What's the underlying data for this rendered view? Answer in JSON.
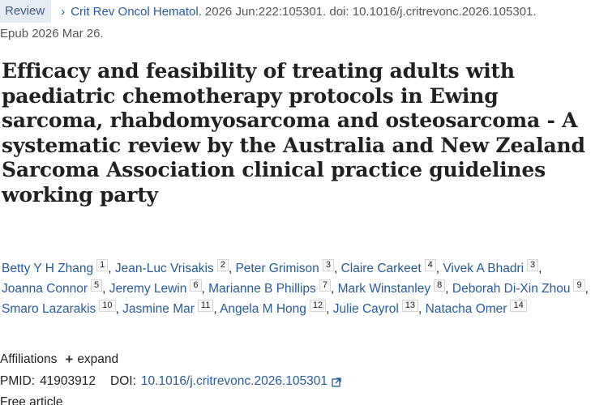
{
  "citation": {
    "badge": "Review",
    "journal": "Crit Rev Oncol Hematol.",
    "details": "2026 Jun:222:105301. doi: 10.1016/j.critrevonc.2026.105301.",
    "epub": "Epub 2026 Mar 26."
  },
  "article": {
    "title": "Efficacy and feasibility of treating adults with paediatric chemotherapy protocols in Ewing sarcoma, rhabdomyosarcoma and osteosarcoma - A systematic review by the Australia and New Zealand Sarcoma Association clinical practice guidelines working party"
  },
  "authors": [
    {
      "name": "Betty Y H Zhang",
      "aff": "1"
    },
    {
      "name": "Jean-Luc Vrisakis",
      "aff": "2"
    },
    {
      "name": "Peter Grimison",
      "aff": "3"
    },
    {
      "name": "Claire Carkeet",
      "aff": "4"
    },
    {
      "name": "Vivek A Bhadri",
      "aff": "3"
    },
    {
      "name": "Joanna Connor",
      "aff": "5"
    },
    {
      "name": "Jeremy Lewin",
      "aff": "6"
    },
    {
      "name": "Marianne B Phillips",
      "aff": "7"
    },
    {
      "name": "Mark Winstanley",
      "aff": "8"
    },
    {
      "name": "Deborah Di-Xin Zhou",
      "aff": "9"
    },
    {
      "name": "Smaro Lazarakis",
      "aff": "10"
    },
    {
      "name": "Jasmine Mar",
      "aff": "11"
    },
    {
      "name": "Angela M Hong",
      "aff": "12"
    },
    {
      "name": "Julie Cayrol",
      "aff": "13"
    },
    {
      "name": "Natacha Omer",
      "aff": "14"
    }
  ],
  "affiliations": {
    "label": "Affiliations",
    "expand_label": "expand",
    "icon": "plus-icon"
  },
  "identifiers": {
    "pmid_label": "PMID:",
    "pmid": "41903912",
    "doi_label": "DOI:",
    "doi": "10.1016/j.critrevonc.2026.105301",
    "doi_icon": "external-link-icon"
  },
  "cutoff_text": "Free article",
  "colors": {
    "link": "#2a5a9a",
    "badge_bg": "#e6ecf3",
    "badge_text": "#40587a",
    "text": "#212121"
  }
}
